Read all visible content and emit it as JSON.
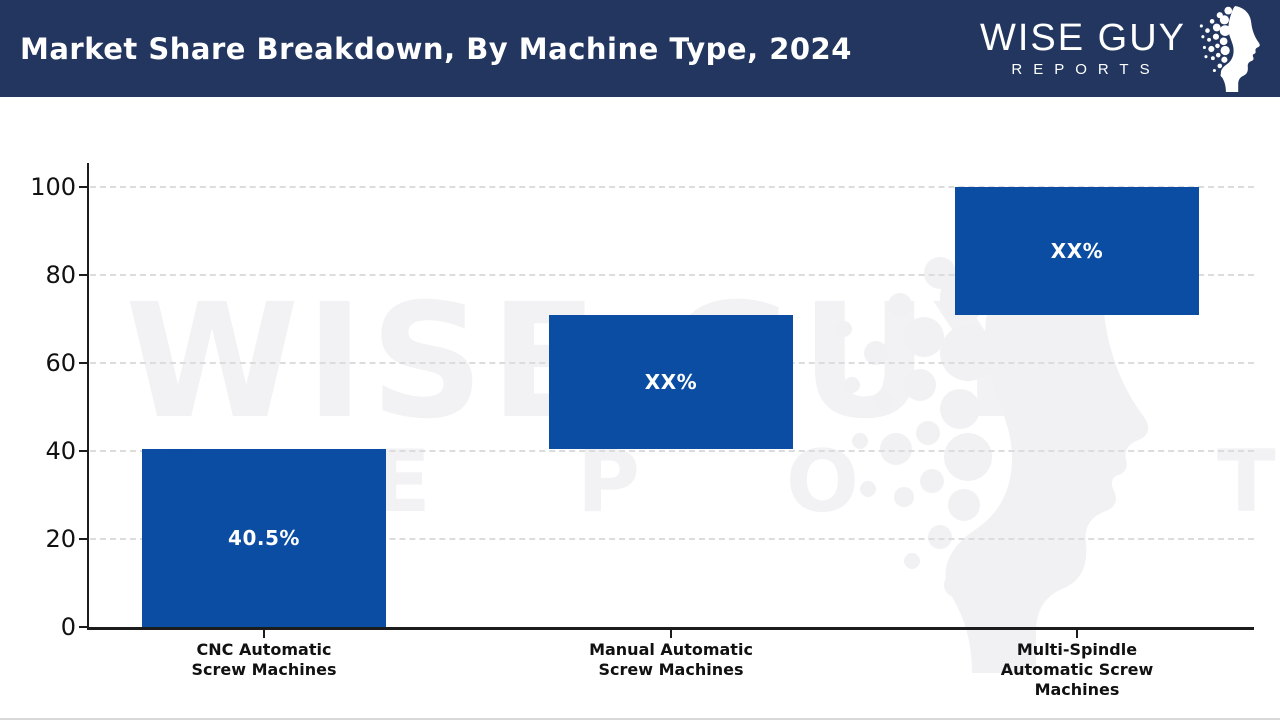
{
  "header": {
    "title": "Market Share Breakdown, By Machine Type, 2024",
    "bg_color": "#22365f",
    "logo": {
      "line1": "WISE GUY",
      "line2": "REPORTS"
    }
  },
  "watermark": {
    "line1": "WISE GUY",
    "line2": "R E P O R T S"
  },
  "chart_data": {
    "type": "bar",
    "variant": "waterfall",
    "title": "Market Share Breakdown, By Machine Type, 2024",
    "categories": [
      "CNC Automatic Screw Machines",
      "Manual Automatic Screw Machines",
      "Multi-Spindle Automatic Screw Machines"
    ],
    "xlabel_lines": [
      [
        "CNC Automatic",
        "Screw Machines"
      ],
      [
        "Manual Automatic",
        "Screw Machines"
      ],
      [
        "Multi-Spindle",
        "Automatic Screw",
        "Machines"
      ]
    ],
    "series": [
      {
        "name": "Market share (%)",
        "segments": [
          {
            "category": "CNC Automatic Screw Machines",
            "start": 0,
            "end": 40.5,
            "label": "40.5%"
          },
          {
            "category": "Manual Automatic Screw Machines",
            "start": 40.5,
            "end": 71,
            "label": "XX%"
          },
          {
            "category": "Multi-Spindle Automatic Screw Machines",
            "start": 71,
            "end": 100,
            "label": "XX%"
          }
        ]
      }
    ],
    "ylim": [
      0,
      100
    ],
    "yticks": [
      0,
      20,
      40,
      60,
      80,
      100
    ],
    "grid": "horizontal-dashed",
    "legend": "none",
    "bar_color": "#0b4da2",
    "bar_label_color": "#ffffff",
    "axis_color": "#1c1c1c",
    "gridline_color": "#dcdcdc"
  }
}
